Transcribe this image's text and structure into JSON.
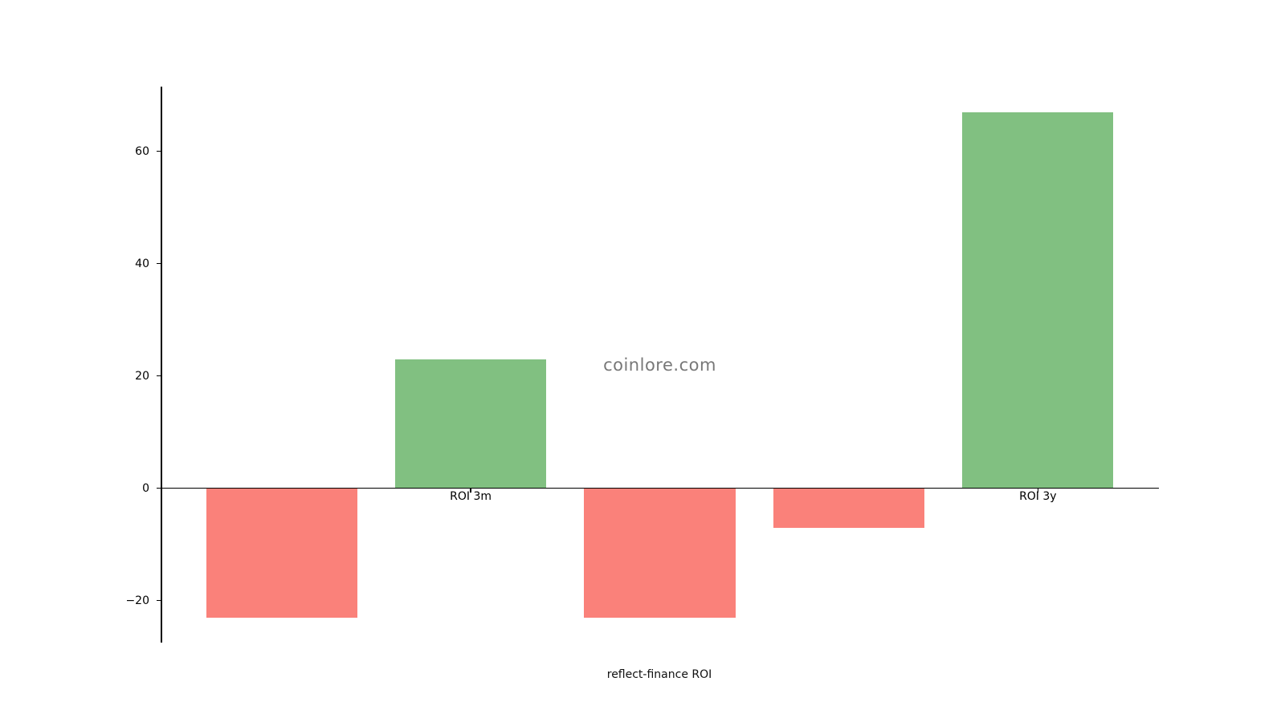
{
  "chart_data": {
    "type": "bar",
    "title": "reflect-finance ROI",
    "watermark": "coinlore.com",
    "categories": [
      "",
      "ROI 3m",
      "",
      "",
      "ROI 3y"
    ],
    "values": [
      -23,
      23,
      -23,
      -7,
      67
    ],
    "bar_colors": [
      "#fa817a",
      "#81c081",
      "#fa817a",
      "#fa817a",
      "#81c081"
    ],
    "yticks": [
      -20,
      0,
      20,
      40,
      60
    ],
    "ylim": [
      -27.5,
      71.5
    ],
    "xlabel": "",
    "ylabel": "",
    "grid": false,
    "legend": false,
    "bar_width_fraction": 0.8,
    "colors": {
      "positive": "#81c081",
      "negative": "#fa817a",
      "axis": "#000000",
      "tick_label": "#000000",
      "title": "#111111",
      "watermark": "#787878",
      "background": "#ffffff"
    }
  }
}
